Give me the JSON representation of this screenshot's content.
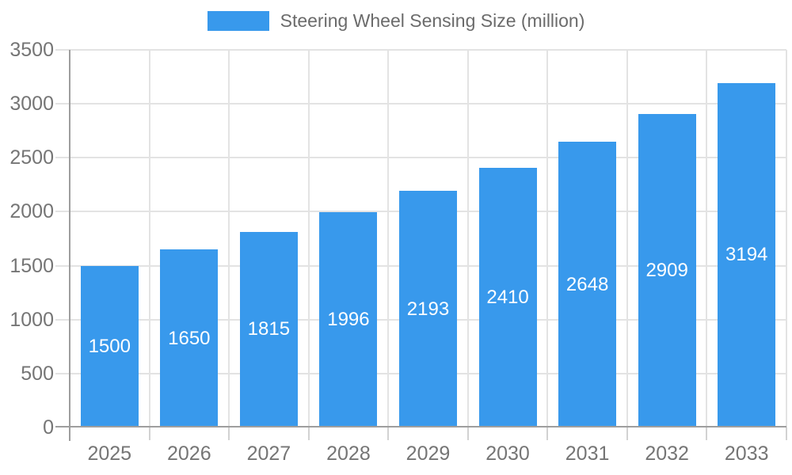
{
  "legend": {
    "label": "Steering Wheel Sensing Size (million)"
  },
  "colors": {
    "bar": "#3899ec",
    "grid": "#e3e3e3",
    "tick": "#d2d2d2",
    "axis_line": "#9e9e9e",
    "axis_text": "#757575",
    "legend_text": "#6b6b6b",
    "value_text": "#ffffff",
    "background": "#ffffff"
  },
  "chart_data": {
    "type": "bar",
    "title": "",
    "xlabel": "",
    "ylabel": "",
    "categories": [
      "2025",
      "2026",
      "2027",
      "2028",
      "2029",
      "2030",
      "2031",
      "2032",
      "2033"
    ],
    "series": [
      {
        "name": "Steering Wheel Sensing Size (million)",
        "values": [
          1500,
          1650,
          1815,
          1996,
          2193,
          2410,
          2648,
          2909,
          3194
        ]
      }
    ],
    "bar_value_labels": [
      1500,
      1650,
      1815,
      1996,
      2193,
      2410,
      2648,
      2909,
      3194
    ],
    "ylim": [
      0,
      3500
    ],
    "yticks": [
      0,
      500,
      1000,
      1500,
      2000,
      2500,
      3000,
      3500
    ],
    "grid": true,
    "legend_position": "top-center"
  }
}
